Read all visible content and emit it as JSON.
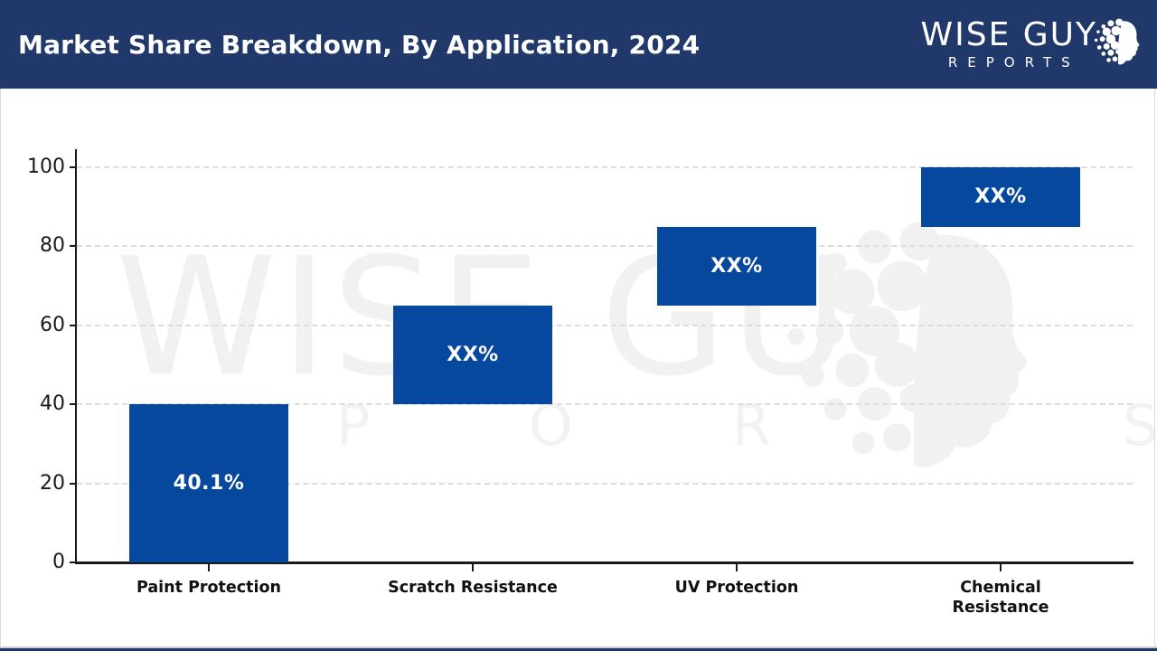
{
  "header": {
    "title": "Market Share Breakdown, By Application, 2024",
    "logo": {
      "line1": "WISE GUY",
      "line2": "REPORTS"
    }
  },
  "watermark": {
    "line1": "WISE GU",
    "line2": "P O R T S"
  },
  "chart_data": {
    "type": "bar",
    "subtype": "waterfall",
    "title": "Market Share Breakdown, By Application, 2024",
    "xlabel": "",
    "ylabel": "",
    "categories": [
      "Paint Protection",
      "Scratch Resistance",
      "UV Protection",
      "Chemical Resistance"
    ],
    "category_display": [
      "Paint Protection",
      "Scratch Resistance",
      "UV Protection",
      "Chemical\nResistance"
    ],
    "segments": [
      {
        "category": "Paint Protection",
        "start": 0,
        "end": 40.1,
        "label": "40.1%"
      },
      {
        "category": "Scratch Resistance",
        "start": 40.1,
        "end": 65,
        "label": "XX%"
      },
      {
        "category": "UV Protection",
        "start": 65,
        "end": 85,
        "label": "XX%"
      },
      {
        "category": "Chemical Resistance",
        "start": 85,
        "end": 100,
        "label": "XX%"
      }
    ],
    "yticks": [
      0,
      20,
      40,
      60,
      80,
      100
    ],
    "ylim": [
      0,
      100
    ],
    "grid": "horizontal-dashed",
    "legend": "none"
  },
  "colors": {
    "header_bg": "#21386b",
    "footer_bg": "#21386b",
    "bar": "#05489e",
    "grid": "#dcdcdc",
    "axis": "#1a1a1a",
    "watermark": "#f1f1f1"
  }
}
